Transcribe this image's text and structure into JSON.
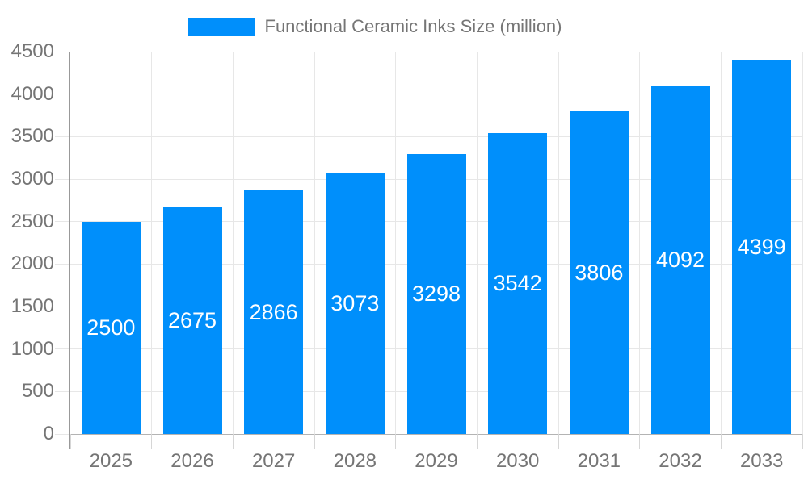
{
  "chart_data": {
    "type": "bar",
    "title": "Functional Ceramic Inks Size (million)",
    "legend": {
      "position": "top",
      "entries": [
        "Functional Ceramic Inks Size (million)"
      ]
    },
    "categories": [
      "2025",
      "2026",
      "2027",
      "2028",
      "2029",
      "2030",
      "2031",
      "2032",
      "2033"
    ],
    "values": [
      2500,
      2675,
      2866,
      3073,
      3298,
      3542,
      3806,
      4092,
      4399
    ],
    "xlabel": "",
    "ylabel": "",
    "ylim": [
      0,
      4500
    ],
    "ytick_step": 500,
    "ytick_labels": [
      "0",
      "500",
      "1000",
      "1500",
      "2000",
      "2500",
      "3000",
      "3500",
      "4000",
      "4500"
    ],
    "grid": true,
    "data_label_position": "inside-center",
    "colors": {
      "bar": "#008FFB",
      "bar_label_text": "#ffffff",
      "axis_text": "#757575",
      "gridline": "#e7e7e7",
      "baseline": "#b3b3b3",
      "tick": "#d6d6d6",
      "axis_line": "#999999",
      "background": "#ffffff"
    }
  }
}
